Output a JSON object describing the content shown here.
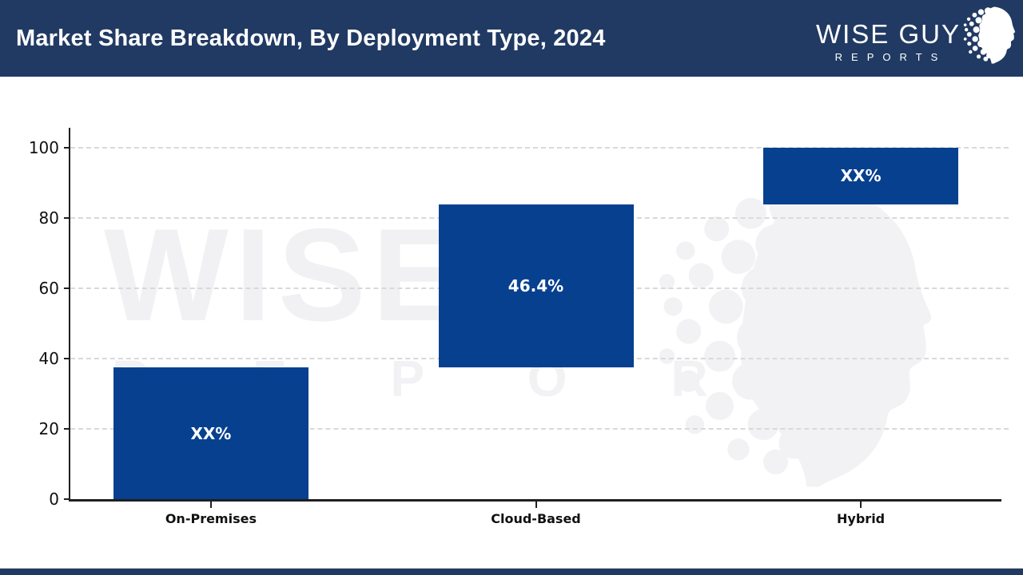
{
  "header": {
    "title": "Market Share Breakdown, By Deployment Type, 2024",
    "logo": {
      "wordmark": "WISE GUY",
      "subtitle": "REPORTS"
    }
  },
  "watermark": {
    "big_text": "WISE",
    "small_text": "REPORTS"
  },
  "colors": {
    "header_bg": "#213A63",
    "footer_bg": "#213A63",
    "bar": "#06408F",
    "bar_label": "#FFFFFF",
    "grid": "#D9D9D9",
    "axis": "#1F1F1F",
    "watermark": "#F1F1F4"
  },
  "chart_data": {
    "type": "bar",
    "subtype": "waterfall-stacked-percentage",
    "title": "Market Share Breakdown, By Deployment Type, 2024",
    "categories": [
      "On-Premises",
      "Cloud-Based",
      "Hybrid"
    ],
    "bars": [
      {
        "category": "On-Premises",
        "label": "XX%",
        "start": 0,
        "end": 37.5,
        "value": 37.5
      },
      {
        "category": "Cloud-Based",
        "label": "46.4%",
        "start": 37.5,
        "end": 83.9,
        "value": 46.4
      },
      {
        "category": "Hybrid",
        "label": "XX%",
        "start": 83.9,
        "end": 100,
        "value": 16.1
      }
    ],
    "xlabel": "",
    "ylabel": "",
    "ylim": [
      0,
      105
    ],
    "yticks": [
      0,
      20,
      40,
      60,
      80,
      100
    ],
    "grid": "horizontal-dashed",
    "legend": "none"
  }
}
